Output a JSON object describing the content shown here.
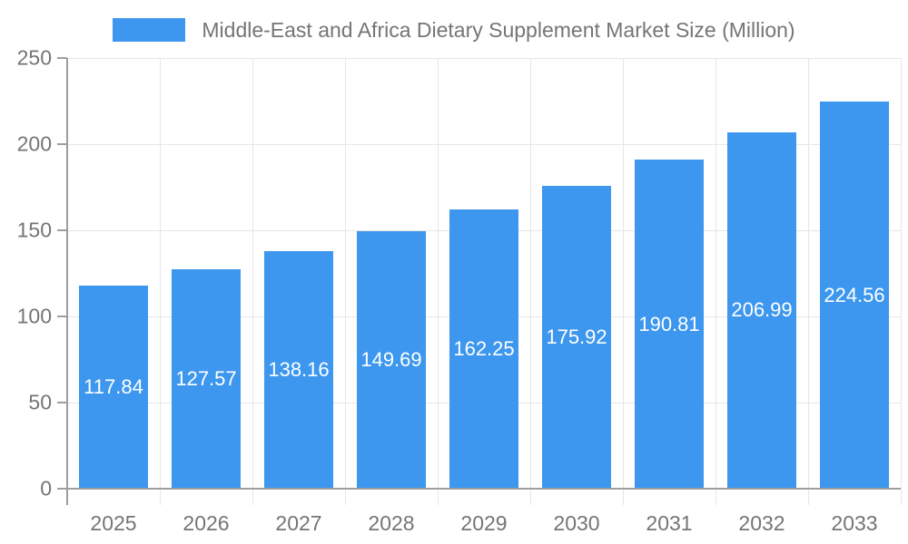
{
  "legend": {
    "label": "Middle-East and Africa Dietary Supplement Market Size (Million)",
    "swatch_color": "#3d97ee"
  },
  "chart_data": {
    "type": "bar",
    "title": "Middle-East and Africa Dietary Supplement Market Size (Million)",
    "categories": [
      "2025",
      "2026",
      "2027",
      "2028",
      "2029",
      "2030",
      "2031",
      "2032",
      "2033"
    ],
    "values": [
      117.84,
      127.57,
      138.16,
      149.69,
      162.25,
      175.92,
      190.81,
      206.99,
      224.56
    ],
    "value_labels": [
      "117.84",
      "127.57",
      "138.16",
      "149.69",
      "162.25",
      "175.92",
      "190.81",
      "206.99",
      "224.56"
    ],
    "xlabel": "",
    "ylabel": "",
    "ylim": [
      0,
      250
    ],
    "yticks": [
      0,
      50,
      100,
      150,
      200,
      250
    ],
    "grid": true,
    "legend_position": "top",
    "colors": {
      "bar": "#3d97ee",
      "value_label": "#ffffff",
      "axis_line": "#9e9e9e",
      "grid_line": "#e6e6e6",
      "tick_label": "#757575",
      "title": "#757575",
      "background": "#ffffff"
    }
  }
}
